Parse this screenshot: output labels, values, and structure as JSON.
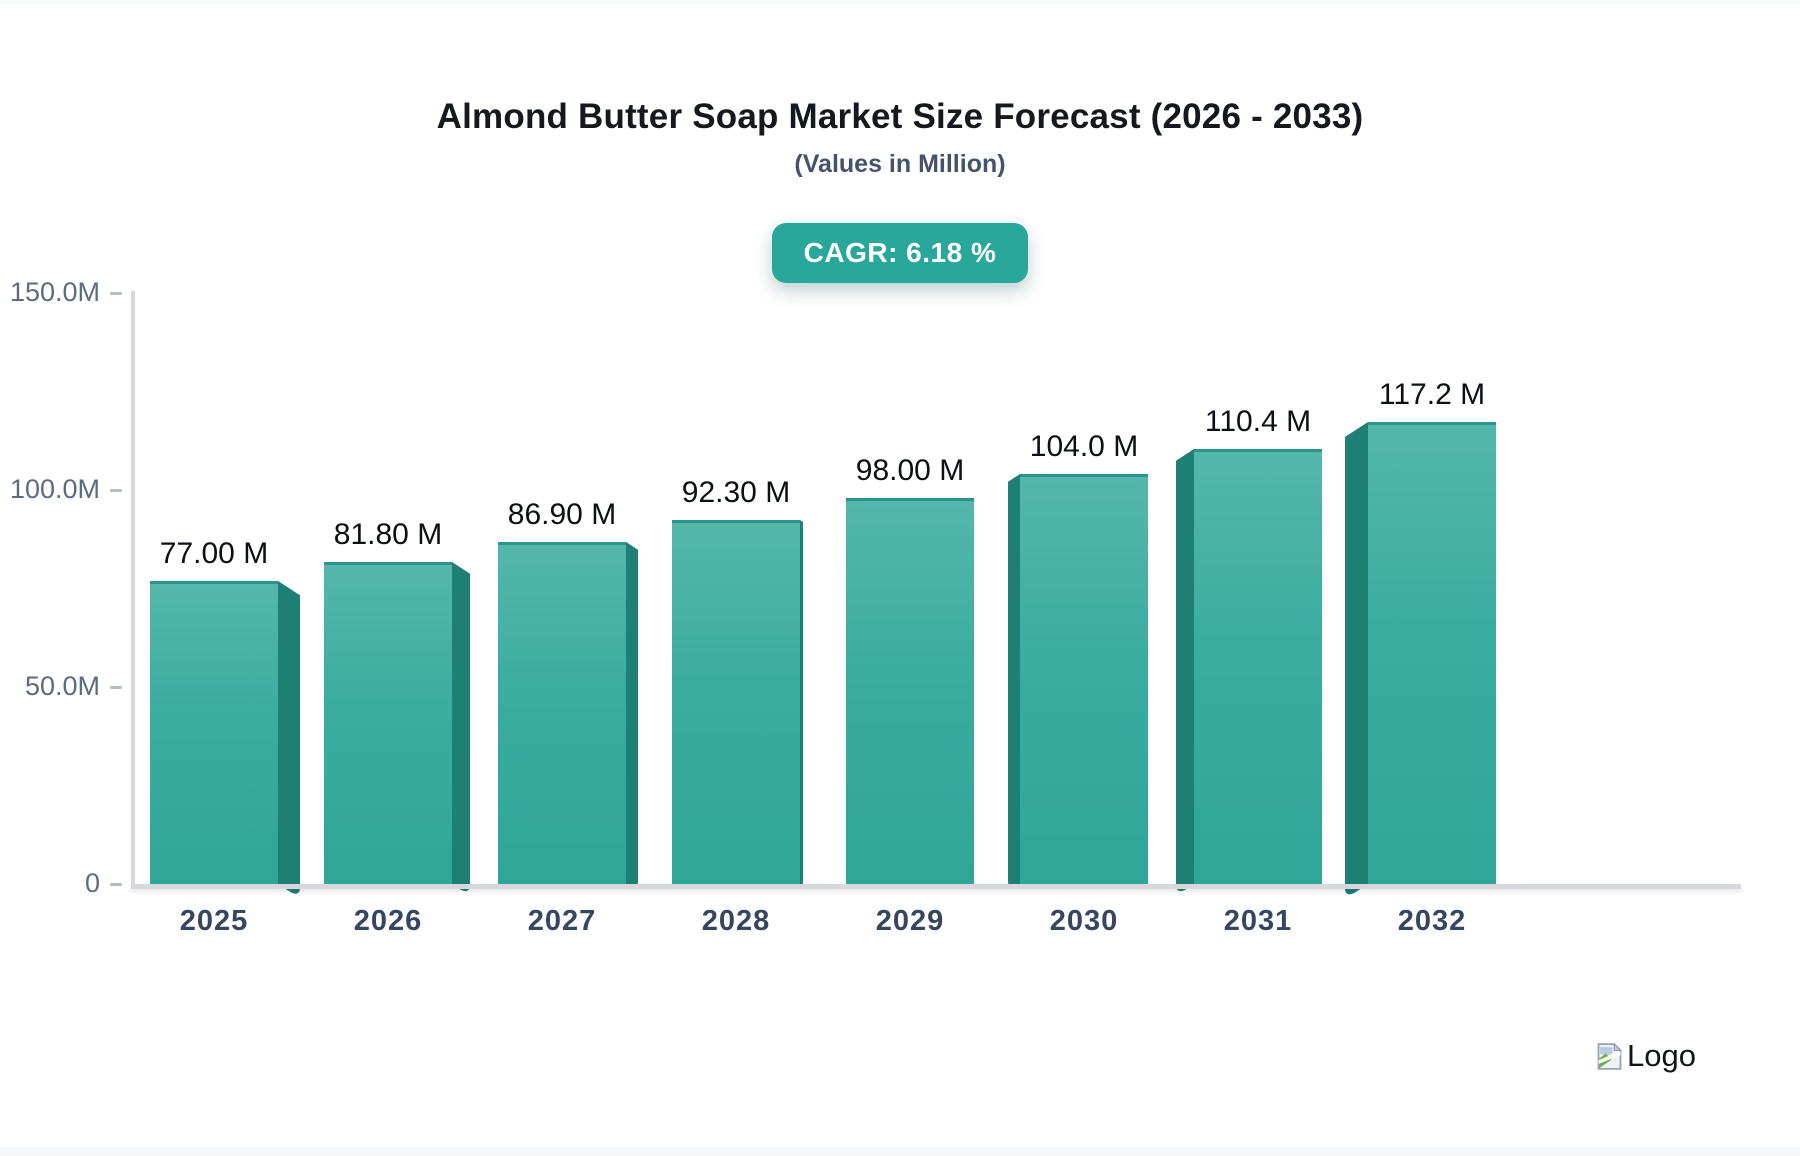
{
  "header": {
    "title": "Almond Butter Soap Market Size Forecast (2026 - 2033)",
    "subtitle": "(Values in Million)",
    "cagr_label": "CAGR: 6.18 %"
  },
  "chart_data": {
    "type": "bar",
    "title": "Almond Butter Soap Market Size Forecast (2026 - 2033)",
    "subtitle": "(Values in Million)",
    "cagr": "6.18 %",
    "categories": [
      "2025",
      "2026",
      "2027",
      "2028",
      "2029",
      "2030",
      "2031",
      "2032"
    ],
    "values": [
      77.0,
      81.8,
      86.9,
      92.3,
      98.0,
      104.0,
      110.4,
      117.2
    ],
    "value_labels": [
      "77.00 M",
      "81.80 M",
      "86.90 M",
      "92.30 M",
      "98.00 M",
      "104.0 M",
      "110.4 M",
      "117.2 M"
    ],
    "xlabel": "",
    "ylabel": "",
    "ylim": [
      0,
      150
    ],
    "yticks": [
      {
        "label": "150.0M",
        "value": 150
      },
      {
        "label": "100.0M",
        "value": 100
      },
      {
        "label": "50.0M",
        "value": 50
      },
      {
        "label": "0",
        "value": 0
      }
    ],
    "grid": false,
    "legend": "none",
    "bar_color": "#2fa698",
    "bar_side_color": "#1e7f75",
    "accent_color": "#2aa79b"
  },
  "footer": {
    "logo_text": "Logo"
  }
}
